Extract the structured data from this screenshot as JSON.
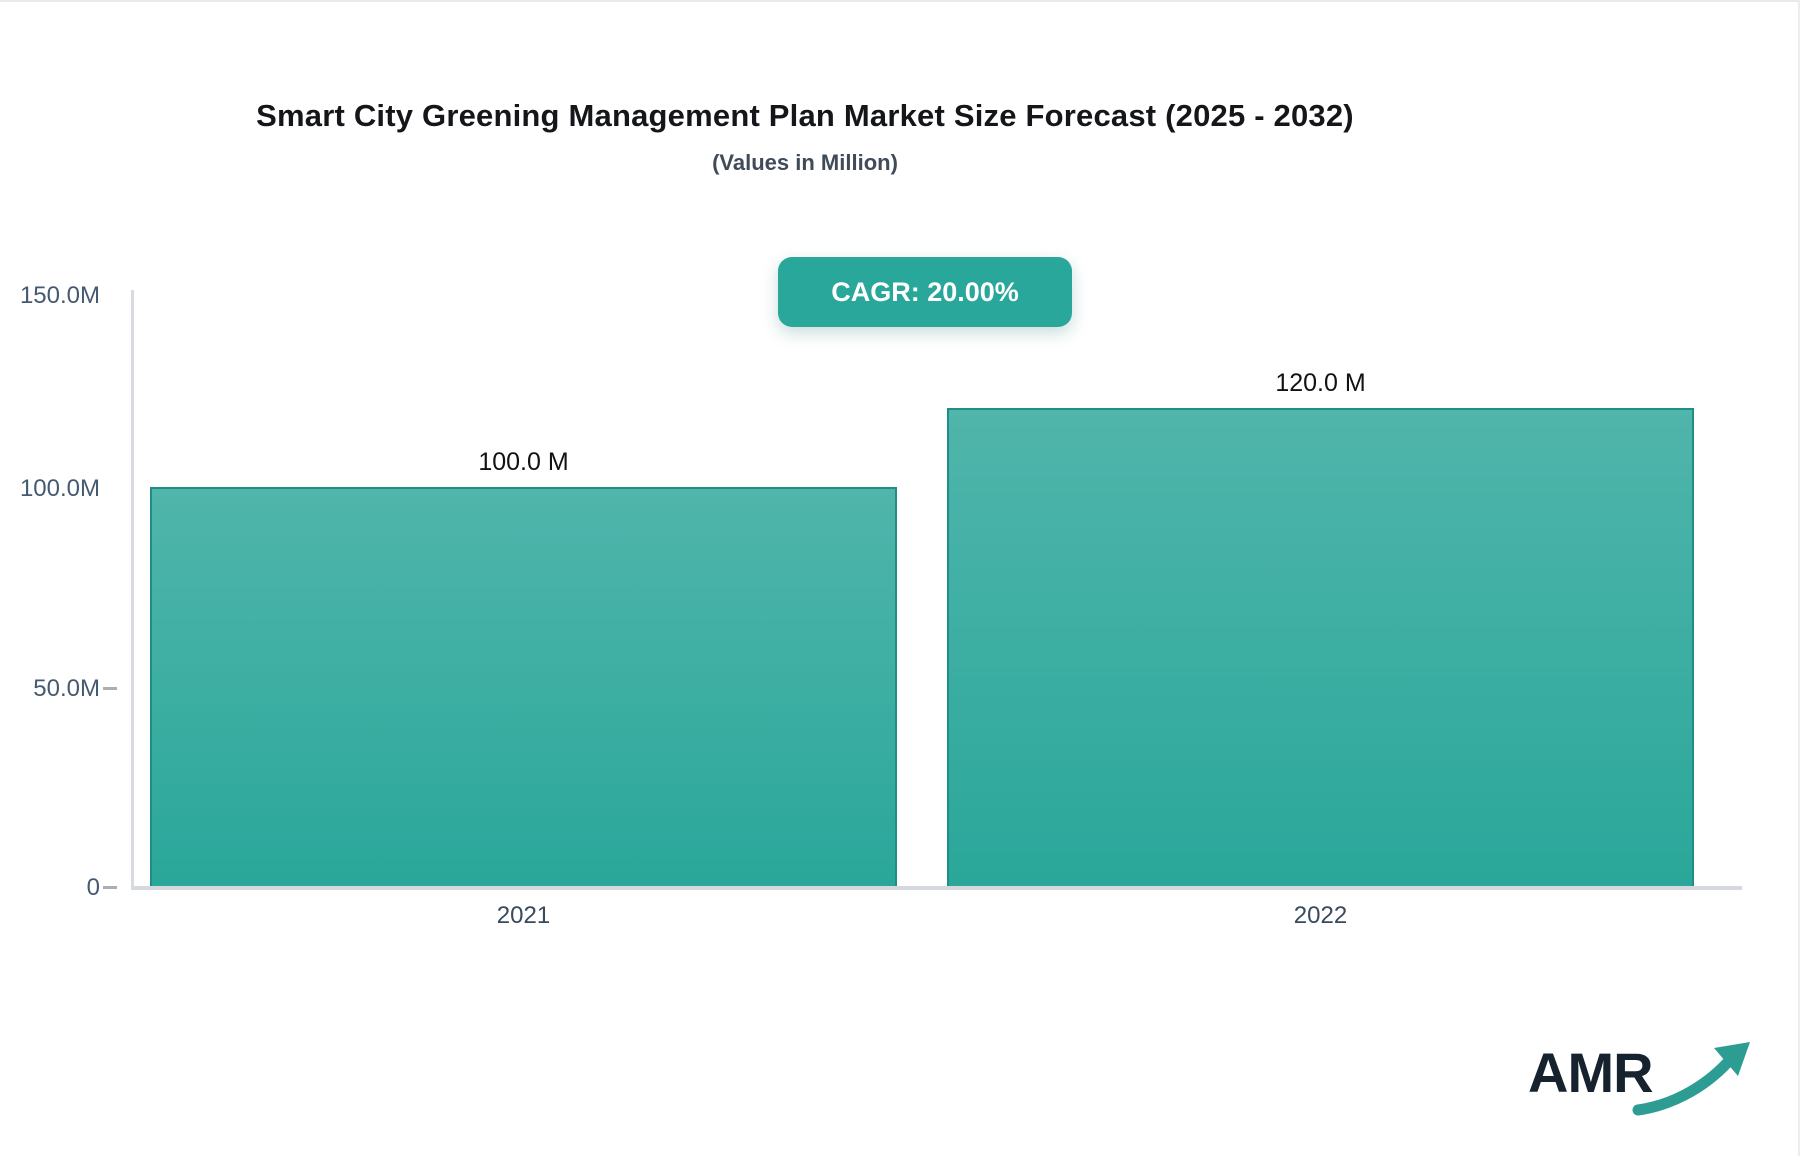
{
  "header": {
    "title": "Smart City Greening Management Plan Market Size Forecast (2025 - 2032)",
    "subtitle": "(Values in Million)",
    "cagr_badge": "CAGR: 20.00%"
  },
  "chart_data": {
    "type": "bar",
    "title": "Smart City Greening Management Plan Market Size Forecast (2025 - 2032)",
    "subtitle": "(Values in Million)",
    "categories": [
      "2021",
      "2022"
    ],
    "values": [
      100,
      120
    ],
    "value_labels": [
      "100.0 M",
      "120.0 M"
    ],
    "unit": "Million",
    "cagr_percent": 20.0,
    "xlabel": "",
    "ylabel": "",
    "ylim": [
      0,
      150
    ],
    "y_tick_labels": [
      "150.0M",
      "100.0M",
      "50.0M",
      "0"
    ],
    "y_tick_values": [
      150,
      100,
      50,
      0
    ],
    "grid": false,
    "legend": "none",
    "bar_gradient_top": "#50b5ab",
    "bar_gradient_bottom": "#2aa79a",
    "bar_border_color": "#1f8e85"
  },
  "colors": {
    "accent_teal": "#2aa79b",
    "axis_gray": "#d5d8dc",
    "tick_label": "#455a70",
    "title_text": "#141619",
    "badge_text": "#ffffff"
  },
  "logo": {
    "text": "AMR",
    "arrow_icon": "trending-up-arrow"
  }
}
